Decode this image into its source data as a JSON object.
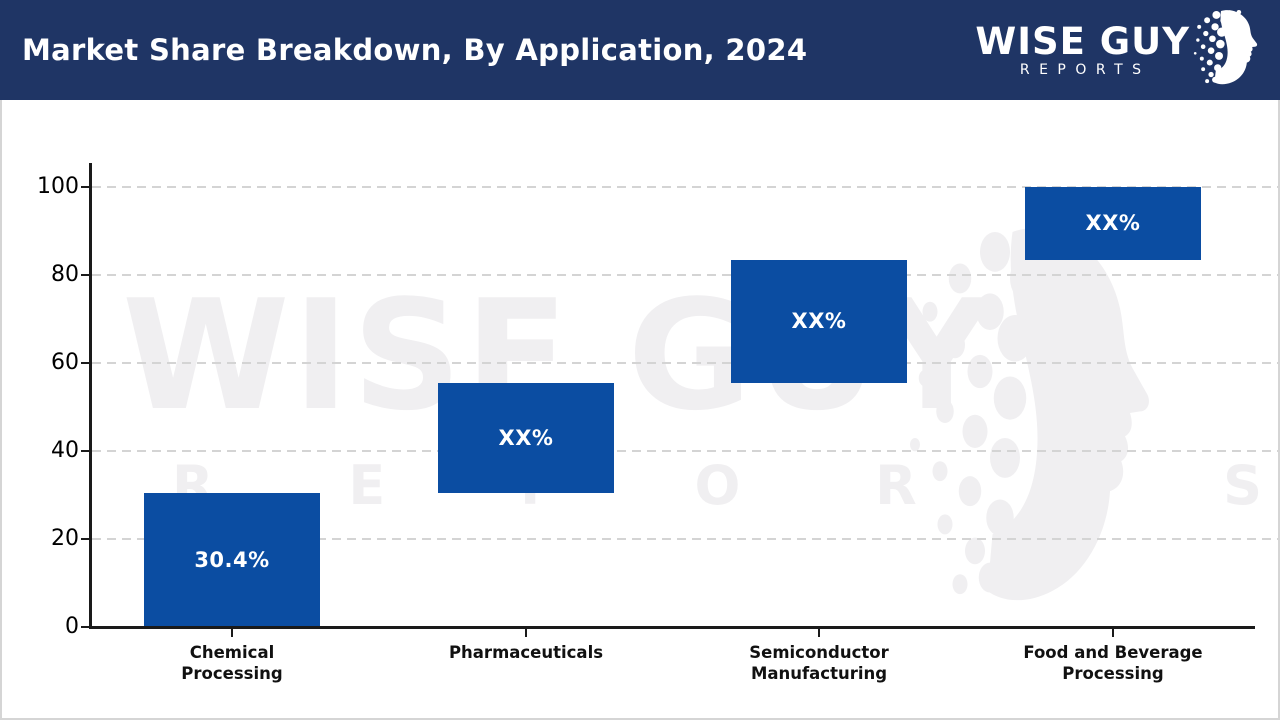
{
  "header": {
    "title": "Market Share Breakdown, By Application, 2024",
    "logo": {
      "line1": "WISE GUY",
      "line2": "REPORTS"
    }
  },
  "watermark": {
    "line1": "WISE GUY",
    "line2": "R E P O R T S"
  },
  "colors": {
    "header_bg": "#1f3565",
    "bar": "#0b4da2",
    "bar_label": "#ffffff",
    "grid": "#d4d4d4",
    "axis": "#1a1a1a",
    "watermark": "#f0eff1"
  },
  "chart_data": {
    "type": "bar",
    "subtype": "floating-waterfall",
    "title": "Market Share Breakdown, By Application, 2024",
    "categories": [
      "Chemical Processing",
      "Pharmaceuticals",
      "Semiconductor Manufacturing",
      "Food and Beverage Processing"
    ],
    "category_label_lines": [
      [
        "Chemical",
        "Processing"
      ],
      [
        "Pharmaceuticals"
      ],
      [
        "Semiconductor",
        "Manufacturing"
      ],
      [
        "Food and Beverage",
        "Processing"
      ]
    ],
    "segments": [
      {
        "category": "Chemical Processing",
        "start": 0,
        "end": 30.4,
        "label": "30.4%"
      },
      {
        "category": "Pharmaceuticals",
        "start": 30.4,
        "end": 55.5,
        "label": "XX%"
      },
      {
        "category": "Semiconductor Manufacturing",
        "start": 55.5,
        "end": 83.5,
        "label": "XX%"
      },
      {
        "category": "Food and Beverage Processing",
        "start": 83.5,
        "end": 100,
        "label": "XX%"
      }
    ],
    "ylim": [
      0,
      100
    ],
    "yticks": [
      0,
      20,
      40,
      60,
      80,
      100
    ],
    "xlabel": "",
    "ylabel": "",
    "grid": {
      "horizontal": true,
      "style": "dashed"
    },
    "legend": "none",
    "bar_color": "#0b4da2",
    "bar_label_color": "#ffffff"
  }
}
